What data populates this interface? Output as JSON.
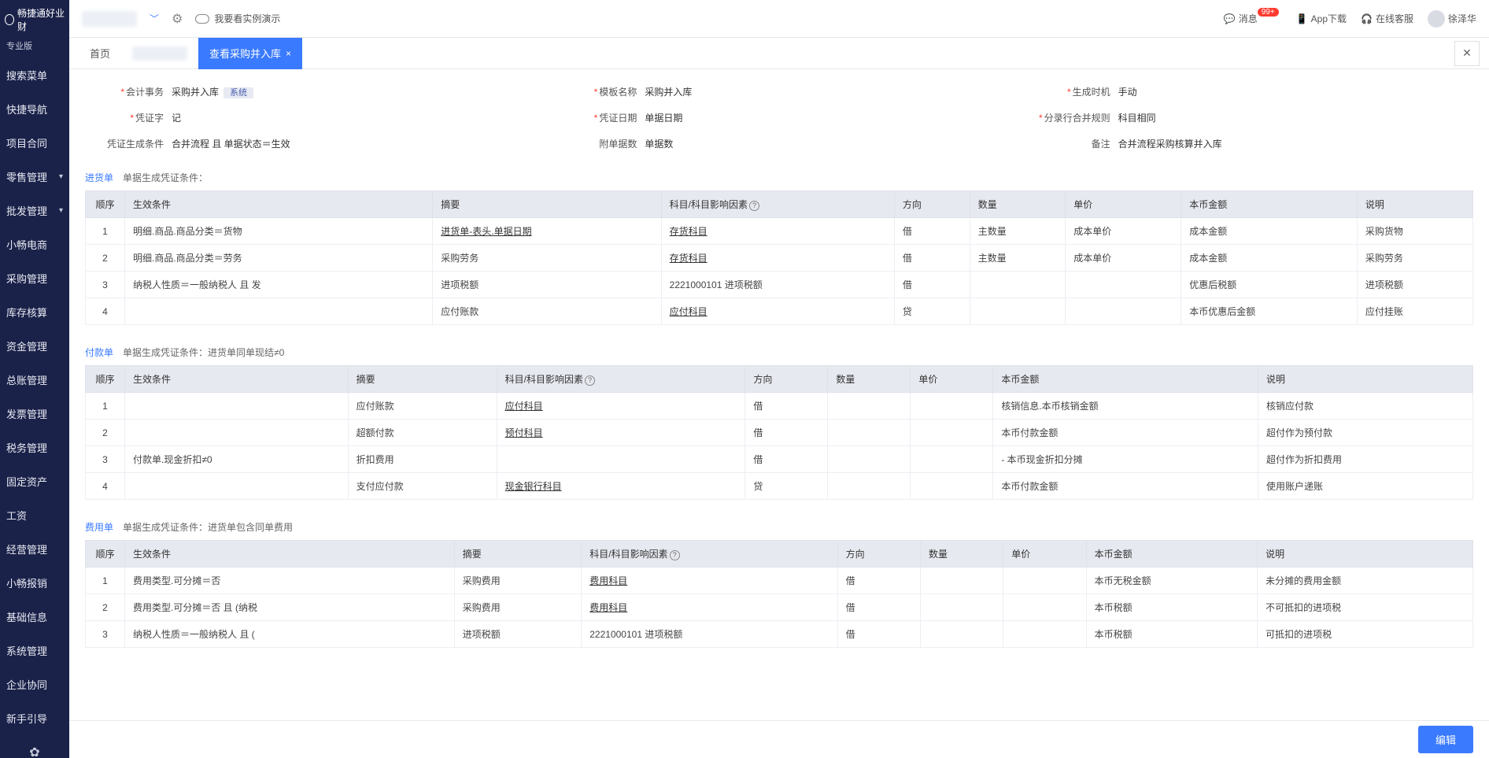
{
  "brand": {
    "name": "畅捷通好业财",
    "edition": "专业版"
  },
  "sidebar": {
    "items": [
      {
        "label": "搜索菜单",
        "caret": false
      },
      {
        "label": "快捷导航",
        "caret": false
      },
      {
        "label": "项目合同",
        "caret": false
      },
      {
        "label": "零售管理",
        "caret": true
      },
      {
        "label": "批发管理",
        "caret": true
      },
      {
        "label": "小畅电商",
        "caret": false
      },
      {
        "label": "采购管理",
        "caret": false
      },
      {
        "label": "库存核算",
        "caret": false
      },
      {
        "label": "资金管理",
        "caret": false
      },
      {
        "label": "总账管理",
        "caret": false
      },
      {
        "label": "发票管理",
        "caret": false
      },
      {
        "label": "税务管理",
        "caret": false
      },
      {
        "label": "固定资产",
        "caret": false
      },
      {
        "label": "工资",
        "caret": false
      },
      {
        "label": "经营管理",
        "caret": false
      },
      {
        "label": "小畅报销",
        "caret": false
      },
      {
        "label": "基础信息",
        "caret": false
      },
      {
        "label": "系统管理",
        "caret": false
      },
      {
        "label": "企业协同",
        "caret": false
      },
      {
        "label": "新手引导",
        "caret": false
      }
    ]
  },
  "topbar": {
    "demo": "我要看实例演示",
    "msg": "消息",
    "badge": "99+",
    "download": "App下载",
    "service": "在线客服",
    "user": "徐泽华"
  },
  "tabs": {
    "home": "首页",
    "active": "查看采购并入库"
  },
  "form": {
    "f1_label": "会计事务",
    "f1_val": "采购并入库",
    "f1_tag": "系统",
    "f2_label": "模板名称",
    "f2_val": "采购并入库",
    "f3_label": "生成时机",
    "f3_val": "手动",
    "f4_label": "凭证字",
    "f4_val": "记",
    "f5_label": "凭证日期",
    "f5_val": "单据日期",
    "f6_label": "分录行合并规则",
    "f6_val": "科目相同",
    "f7_label": "凭证生成条件",
    "f7_val": "合并流程 且 单据状态＝生效",
    "f8_label": "附单据数",
    "f8_val": "单据数",
    "f9_label": "备注",
    "f9_val": "合并流程采购核算并入库"
  },
  "tableHeaders": {
    "seq": "顺序",
    "cond": "生效条件",
    "summary": "摘要",
    "subject": "科目/科目影响因素",
    "dir": "方向",
    "qty": "数量",
    "price": "单价",
    "amount": "本币金额",
    "desc": "说明"
  },
  "sections": [
    {
      "title": "进货单",
      "cond": "单据生成凭证条件：",
      "rows": [
        {
          "seq": "1",
          "cond": "明细.商品.商品分类＝货物",
          "summary": "进货单-表头.单据日期",
          "subject": "存货科目",
          "subject_link": true,
          "dir": "借",
          "qty": "主数量",
          "price": "成本单价",
          "amount": "成本金额",
          "desc": "采购货物"
        },
        {
          "seq": "2",
          "cond": "明细.商品.商品分类＝劳务",
          "summary": "采购劳务",
          "subject": "存货科目",
          "subject_link": true,
          "dir": "借",
          "qty": "主数量",
          "price": "成本单价",
          "amount": "成本金额",
          "desc": "采购劳务"
        },
        {
          "seq": "3",
          "cond": "纳税人性质＝一般纳税人 且 发",
          "summary": "进项税额",
          "subject": "2221000101 进项税额",
          "subject_link": false,
          "dir": "借",
          "qty": "",
          "price": "",
          "amount": "优惠后税额",
          "desc": "进项税额"
        },
        {
          "seq": "4",
          "cond": "",
          "summary": "应付账款",
          "subject": "应付科目",
          "subject_link": true,
          "dir": "贷",
          "qty": "",
          "price": "",
          "amount": "本币优惠后金额",
          "desc": "应付挂账"
        }
      ]
    },
    {
      "title": "付款单",
      "cond": "单据生成凭证条件：进货单同单现结≠0",
      "rows": [
        {
          "seq": "1",
          "cond": "",
          "summary": "应付账款",
          "subject": "应付科目",
          "subject_link": true,
          "dir": "借",
          "qty": "",
          "price": "",
          "amount": "核销信息.本币核销金额",
          "desc": "核销应付款"
        },
        {
          "seq": "2",
          "cond": "",
          "summary": "超额付款",
          "subject": "预付科目",
          "subject_link": true,
          "dir": "借",
          "qty": "",
          "price": "",
          "amount": "本币付款金额",
          "desc": "超付作为预付款"
        },
        {
          "seq": "3",
          "cond": "付款单.现金折扣≠0",
          "summary": "折扣费用",
          "subject": "",
          "subject_link": false,
          "dir": "借",
          "qty": "",
          "price": "",
          "amount": "- 本币现金折扣分摊",
          "desc": "超付作为折扣费用"
        },
        {
          "seq": "4",
          "cond": "",
          "summary": "支付应付款",
          "subject": "现金银行科目",
          "subject_link": true,
          "dir": "贷",
          "qty": "",
          "price": "",
          "amount": "本币付款金额",
          "desc": "使用账户递账"
        }
      ]
    },
    {
      "title": "费用单",
      "cond": "单据生成凭证条件：进货单包含同单费用",
      "rows": [
        {
          "seq": "1",
          "cond": "费用类型.可分摊＝否",
          "summary": "采购费用",
          "subject": "费用科目",
          "subject_link": true,
          "dir": "借",
          "qty": "",
          "price": "",
          "amount": "本币无税金额",
          "desc": "未分摊的费用金额"
        },
        {
          "seq": "2",
          "cond": "费用类型.可分摊＝否 且 (纳税",
          "summary": "采购费用",
          "subject": "费用科目",
          "subject_link": true,
          "dir": "借",
          "qty": "",
          "price": "",
          "amount": "本币税额",
          "desc": "不可抵扣的进项税"
        },
        {
          "seq": "3",
          "cond": "纳税人性质＝一般纳税人 且 (",
          "summary": "进项税额",
          "subject": "2221000101 进项税额",
          "subject_link": false,
          "dir": "借",
          "qty": "",
          "price": "",
          "amount": "本币税额",
          "desc": "可抵扣的进项税"
        }
      ]
    }
  ],
  "footer": {
    "edit": "编辑"
  }
}
